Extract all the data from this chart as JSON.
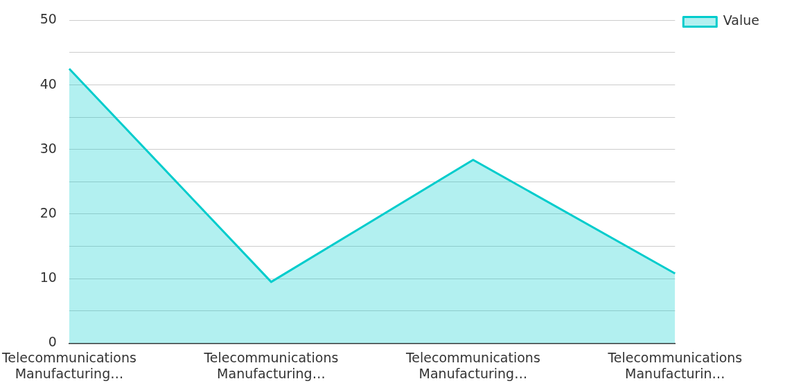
{
  "chart_data": {
    "type": "area",
    "categories": [
      "Telecommunications Manufacturing…",
      "Telecommunications Manufacturing…",
      "Telecommunications Manufacturing…",
      "Telecommunications Manufacturin…"
    ],
    "series": [
      {
        "name": "Value",
        "color": "#00cccc",
        "values": [
          42.5,
          9.5,
          28.4,
          10.8
        ]
      }
    ],
    "ylim": [
      0,
      50
    ],
    "yticks": [
      0,
      {
        "value": 5,
        "label": null
      },
      10,
      {
        "value": 15,
        "label": null
      },
      20,
      {
        "value": 25,
        "label": null
      },
      30,
      {
        "value": 35,
        "label": null
      },
      40,
      {
        "value": 45,
        "label": null
      },
      50
    ],
    "grid": "y",
    "legend": "top right",
    "marker": "none",
    "line_style": "solid"
  }
}
